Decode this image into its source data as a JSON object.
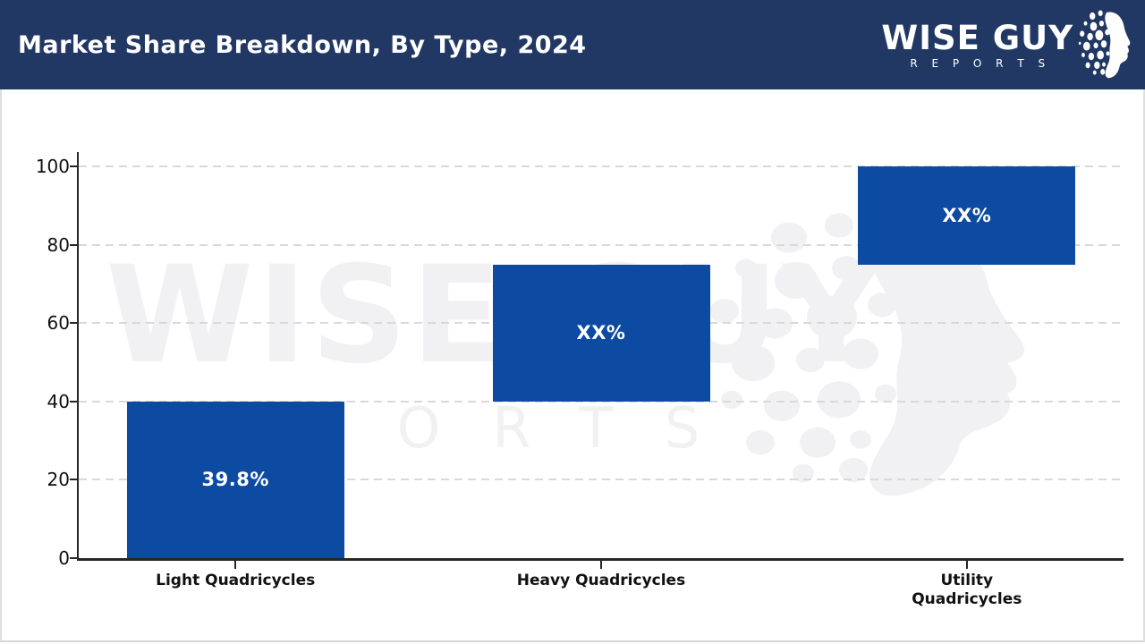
{
  "header": {
    "title": "Market Share Breakdown, By Type, 2024",
    "logo": {
      "line1": "WISE GUY",
      "line2": "R E P O R T S"
    }
  },
  "watermark": {
    "line1": "WISE GUY",
    "line2": "REPORTS"
  },
  "chart_data": {
    "type": "bar",
    "subtype": "floating-stacked-waterfall",
    "title": "Market Share Breakdown, By Type, 2024",
    "categories": [
      "Light Quadricycles",
      "Heavy Quadricycles",
      "Utility\nQuadricycles"
    ],
    "series": [
      {
        "name": "Market Share %",
        "segments": [
          {
            "category": "Light Quadricycles",
            "base": 0,
            "top": 40,
            "label": "39.8%",
            "value": 39.8
          },
          {
            "category": "Heavy Quadricycles",
            "base": 40,
            "top": 75,
            "label": "XX%",
            "value": null
          },
          {
            "category": "Utility Quadricycles",
            "base": 75,
            "top": 100,
            "label": "XX%",
            "value": null
          }
        ]
      }
    ],
    "xlabel": "",
    "ylabel": "",
    "ylim": [
      0,
      100
    ],
    "yticks": [
      0,
      20,
      40,
      60,
      80,
      100
    ],
    "grid": "horizontal-dashed",
    "legend": "none",
    "bar_color": "#0d4aa1",
    "bar_label_color": "#ffffff"
  },
  "colors": {
    "header_bg": "#223864",
    "bar": "#0d4aa1",
    "grid": "#d9d9d9",
    "axis": "#262626",
    "text": "#111111",
    "watermark": "#f1f1f4",
    "frame": "#dedede"
  }
}
